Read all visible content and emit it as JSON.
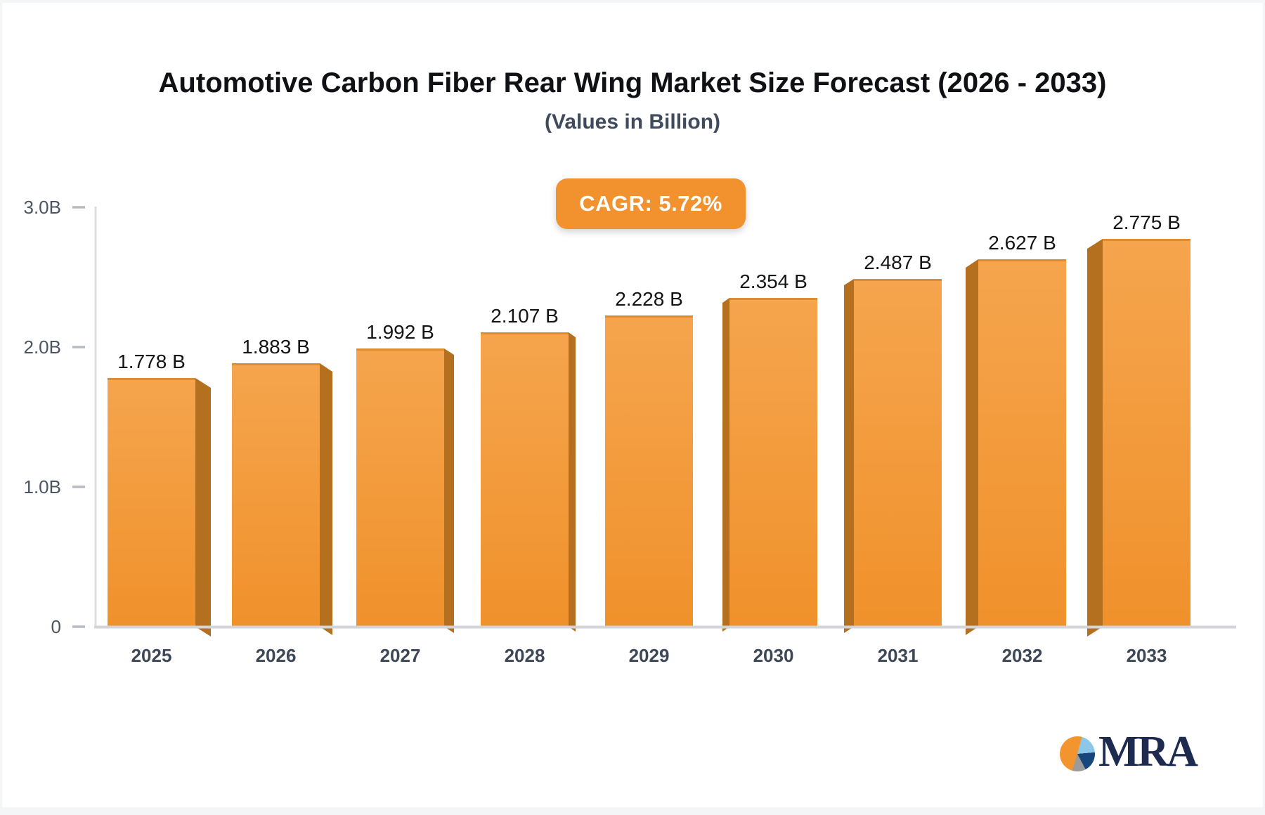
{
  "header": {
    "title": "Automotive Carbon Fiber Rear Wing Market Size Forecast (2026 - 2033)",
    "subtitle": "(Values in Billion)"
  },
  "badge": {
    "label": "CAGR: 5.72%"
  },
  "logo": {
    "text": "MRA"
  },
  "colors": {
    "bar_front_top": "#F5A54E",
    "bar_front_bottom": "#F0912B",
    "bar_top_edge": "#DD8C30",
    "bar_side": "#B4701E",
    "axis_line": "#dcdde1",
    "baseline": "#d2d4d8",
    "tick_dash": "#b6bac2",
    "tick_label": "#4b5563",
    "x_label": "#3c4758",
    "value_label": "#131416",
    "badge_bg": "#F1922E",
    "badge_text": "#ffffff",
    "logo_navy": "#1d2b50",
    "logo_pie_orange": "#F2952F",
    "logo_pie_lightblue": "#8CC7E9",
    "logo_pie_darkblue": "#17477A",
    "logo_pie_gray": "#9B9B9B"
  },
  "chart_data": {
    "type": "bar",
    "title": "Automotive Carbon Fiber Rear Wing Market Size Forecast (2026 - 2033)",
    "subtitle": "(Values in Billion)",
    "annotation": "CAGR: 5.72%",
    "categories": [
      "2025",
      "2026",
      "2027",
      "2028",
      "2029",
      "2030",
      "2031",
      "2032",
      "2033"
    ],
    "values": [
      1.778,
      1.883,
      1.992,
      2.107,
      2.228,
      2.354,
      2.487,
      2.627,
      2.775
    ],
    "value_labels": [
      "1.778 B",
      "1.883 B",
      "1.992 B",
      "2.107 B",
      "2.228 B",
      "2.354 B",
      "2.487 B",
      "2.627 B",
      "2.775 B"
    ],
    "xlabel": "",
    "ylabel": "",
    "ylim": [
      0,
      3.0
    ],
    "y_ticks": [
      "0",
      "1.0B",
      "2.0B",
      "3.0B"
    ],
    "y_tick_values": [
      0,
      1.0,
      2.0,
      3.0
    ],
    "grid": false,
    "legend": false,
    "bar_style": "3d-perspective"
  }
}
